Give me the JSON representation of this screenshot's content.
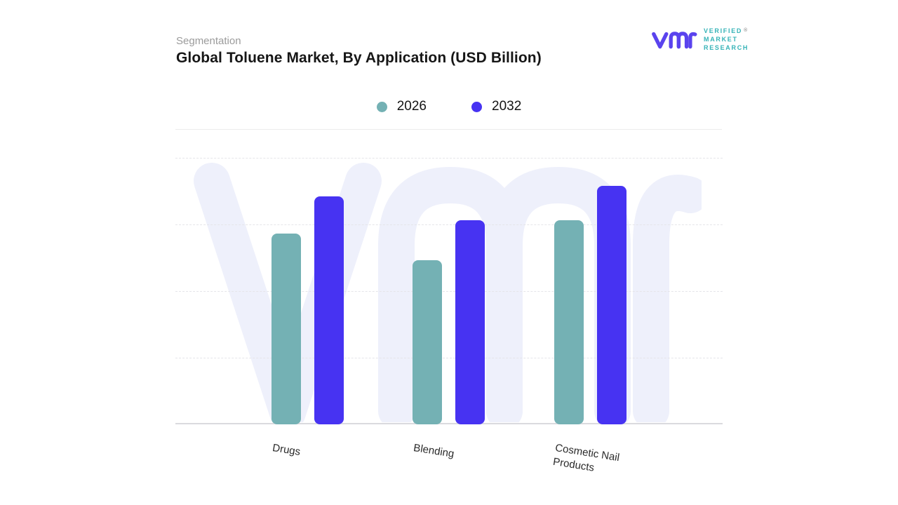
{
  "header": {
    "eyebrow": "Segmentation",
    "title": "Global Toluene Market, By Application (USD Billion)"
  },
  "logo": {
    "lines": [
      "VERIFIED",
      "MARKET",
      "RESEARCH"
    ],
    "registered": "®",
    "mark_color": "#5A43EE",
    "text_color": "#35B3B7"
  },
  "legend": [
    {
      "label": "2026",
      "color": "#74B1B4"
    },
    {
      "label": "2032",
      "color": "#4733F2"
    }
  ],
  "chart_data": {
    "type": "bar",
    "title": "Global Toluene Market, By Application (USD Billion)",
    "categories": [
      "Drugs",
      "Blending",
      "Cosmetic Nail Products"
    ],
    "series": [
      {
        "name": "2026",
        "color": "#74B1B4",
        "values": [
          72,
          62,
          77
        ]
      },
      {
        "name": "2032",
        "color": "#4733F2",
        "values": [
          86,
          77,
          90
        ]
      }
    ],
    "xlabel": "",
    "ylabel": "",
    "ylim": [
      0,
      100
    ],
    "y_tick_labels": [],
    "gridlines": "horizontal-dashed",
    "legend_position": "top-center",
    "watermark_color": "#EEF0FB"
  }
}
